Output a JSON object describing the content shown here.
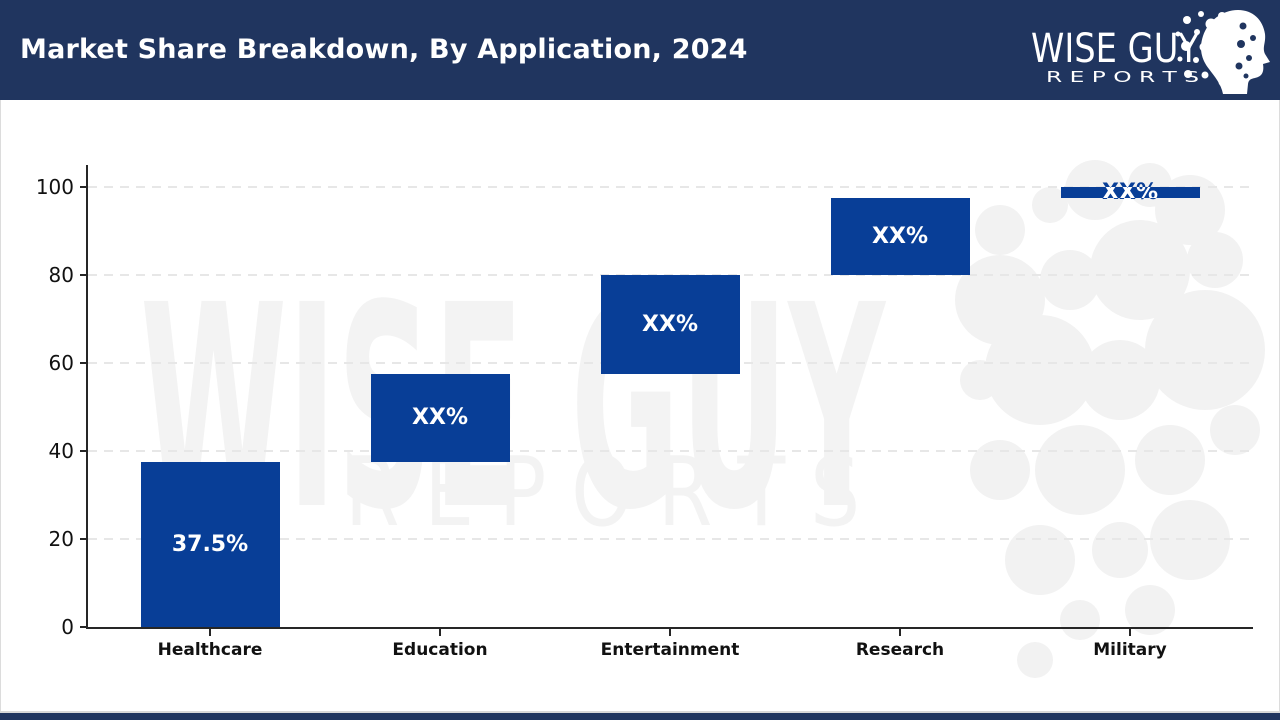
{
  "header": {
    "title": "Market Share Breakdown, By Application, 2024",
    "logo": {
      "line1": "WISE GUY",
      "line2": "R E P O R T S"
    }
  },
  "watermark": {
    "line1": "WISE GUY",
    "line2": "R E P O R T S"
  },
  "chart_data": {
    "type": "bar",
    "subtype": "waterfall",
    "title": "Market Share Breakdown, By Application, 2024",
    "categories": [
      "Healthcare",
      "Education",
      "Entertainment",
      "Research",
      "Military"
    ],
    "bars": [
      {
        "category": "Healthcare",
        "label": "37.5%",
        "start": 0,
        "end": 37.5
      },
      {
        "category": "Education",
        "label": "XX%",
        "start": 37.5,
        "end": 57.5
      },
      {
        "category": "Entertainment",
        "label": "XX%",
        "start": 57.5,
        "end": 80
      },
      {
        "category": "Research",
        "label": "XX%",
        "start": 80,
        "end": 97.5
      },
      {
        "category": "Military",
        "label": "XX%",
        "start": 97.5,
        "end": 100
      }
    ],
    "segment_values_pct": [
      37.5,
      20,
      22.5,
      17.5,
      2.5
    ],
    "xlabel": "",
    "ylabel": "",
    "ylim": [
      0,
      100
    ],
    "yticks": [
      0,
      20,
      40,
      60,
      80,
      100
    ],
    "grid": "dashed-horizontal",
    "legend": "none"
  },
  "colors": {
    "header_bg": "#20355f",
    "bar": "#083e97",
    "bar_label": "#ffffff",
    "axis": "#262626",
    "gridline": "#e7e7e7",
    "tick_text": "#111111",
    "watermark": "#f3f3f3",
    "footer_bg": "#20355f",
    "hairline": "#d8d8d8"
  }
}
